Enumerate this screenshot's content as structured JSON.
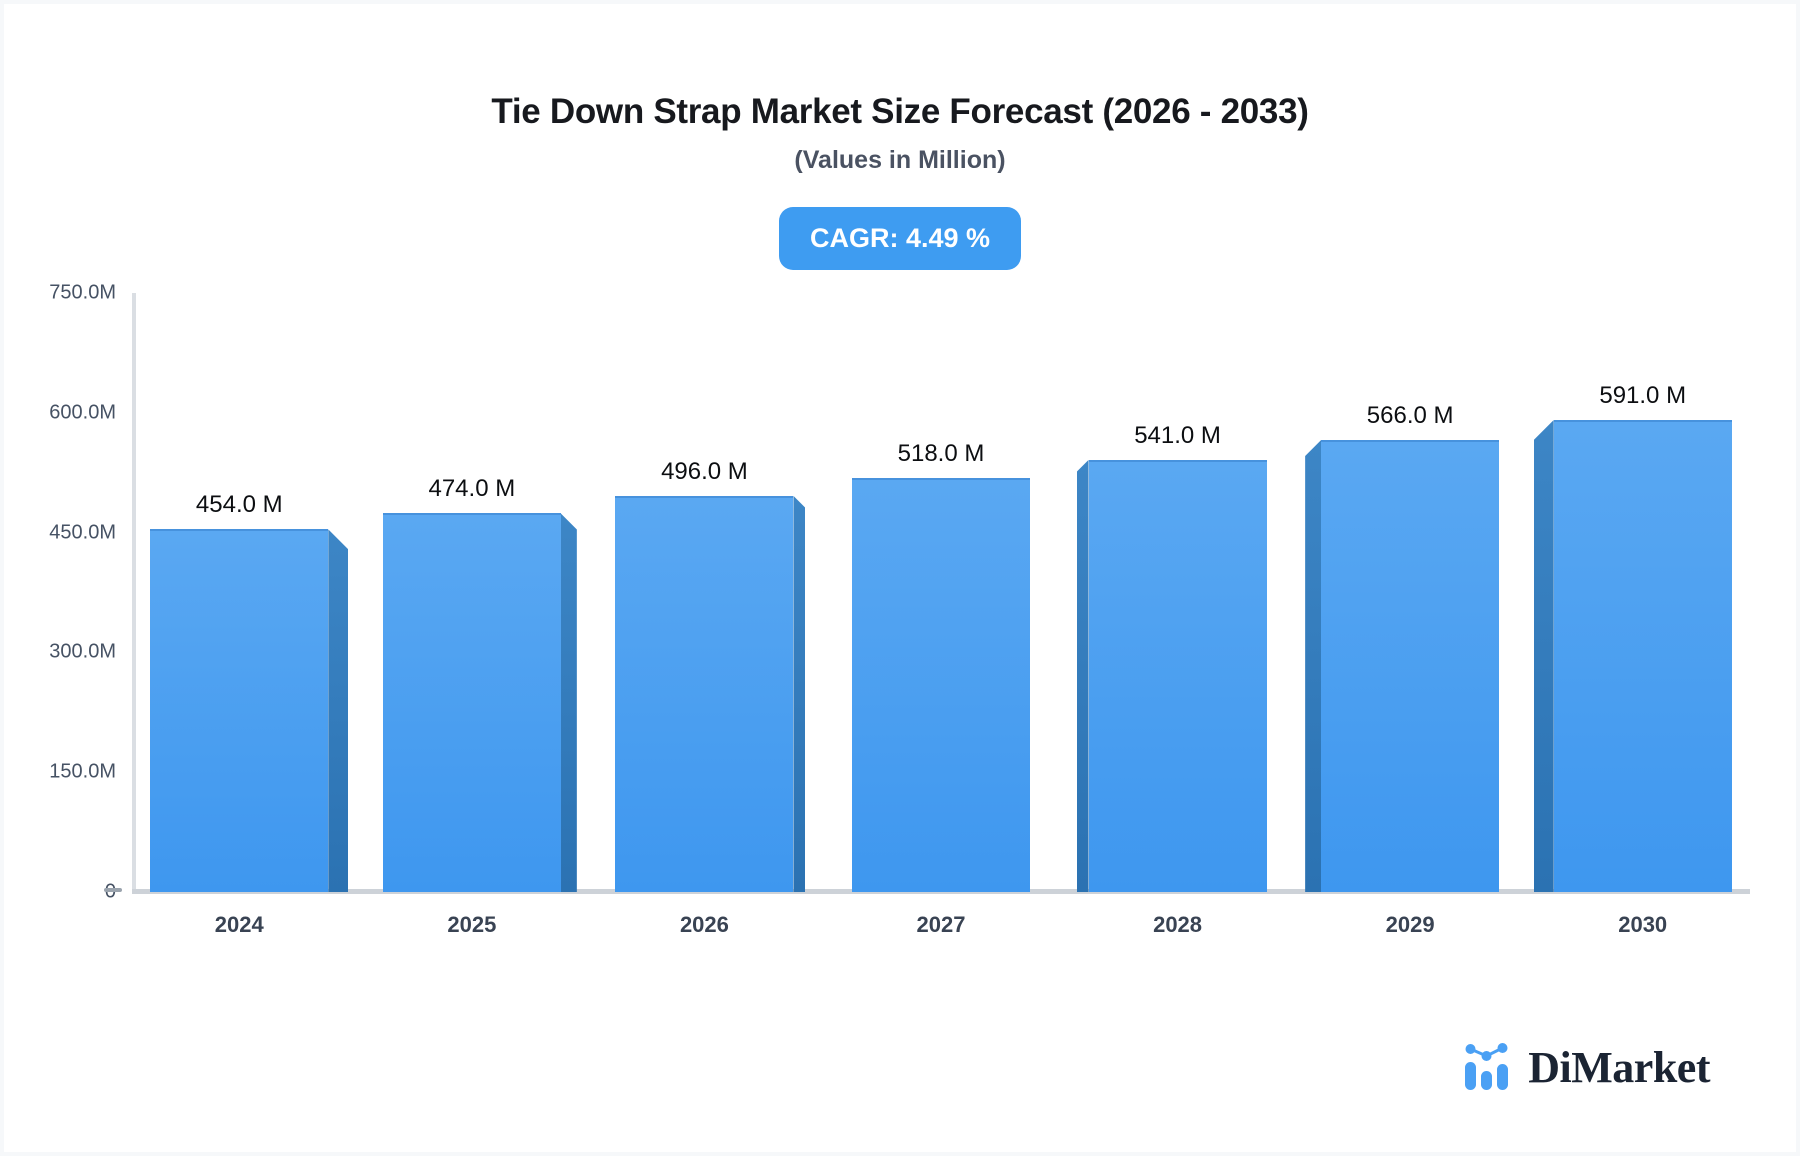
{
  "header": {
    "title": "Tie Down Strap Market Size Forecast (2026 - 2033)",
    "subtitle": "(Values in Million)"
  },
  "badge": {
    "label": "CAGR: 4.49 %"
  },
  "logo": {
    "text": "DiMarket",
    "icon": "bar-chart-logo-icon"
  },
  "colors": {
    "bar_face_top": "#5aa8f2",
    "bar_face_bottom": "#3e97ef",
    "bar_side": "#2d77b9",
    "badge_bg": "#3e9cf1",
    "axis_line": "#dadee3",
    "tick_text": "#465264",
    "logo_blue": "#4aa0f4",
    "logo_navy": "#1b2433"
  },
  "chart_data": {
    "type": "bar",
    "title": "Tie Down Strap Market Size Forecast (2026 - 2033)",
    "subtitle": "(Values in Million)",
    "categories": [
      "2024",
      "2025",
      "2026",
      "2027",
      "2028",
      "2029",
      "2030"
    ],
    "values": [
      454,
      474,
      496,
      518,
      541,
      566,
      591
    ],
    "value_labels": [
      "454.0 M",
      "474.0 M",
      "496.0 M",
      "518.0 M",
      "541.0 M",
      "566.0 M",
      "591.0 M"
    ],
    "unit": "Million",
    "y_ticks": [
      "750.0M",
      "600.0M",
      "450.0M",
      "300.0M",
      "150.0M",
      "0"
    ],
    "ylim": [
      0,
      750
    ],
    "xlabel": "",
    "ylabel": "",
    "grid": false,
    "legend": null,
    "cagr_percent": 4.49,
    "perspective": "center-vanishing 3d bars"
  }
}
